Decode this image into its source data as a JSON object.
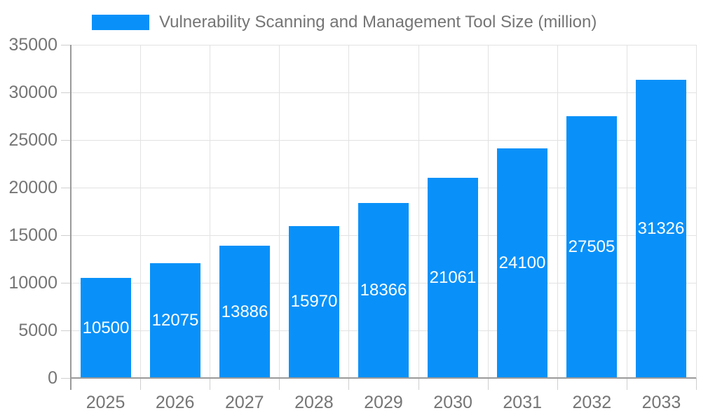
{
  "legend": {
    "label": "Vulnerability Scanning and Management Tool Size (million)",
    "swatch_color": "#0991f9"
  },
  "colors": {
    "bar": "#0991f9",
    "bar_label": "#ffffff",
    "axis_line": "#9a9a9a",
    "grid_line": "#e2e2e2",
    "tick_line": "#cfcfcf",
    "axis_label": "#757575",
    "background": "#ffffff"
  },
  "chart_data": {
    "type": "bar",
    "title": "Vulnerability Scanning and Management Tool Size (million)",
    "categories": [
      "2025",
      "2026",
      "2027",
      "2028",
      "2029",
      "2030",
      "2031",
      "2032",
      "2033"
    ],
    "values": [
      10500,
      12075,
      13886,
      15970,
      18366,
      21061,
      24100,
      27505,
      31326
    ],
    "xlabel": "",
    "ylabel": "",
    "ylim": [
      0,
      35000
    ],
    "ytick_interval": 5000,
    "yticks": [
      0,
      5000,
      10000,
      15000,
      20000,
      25000,
      30000,
      35000
    ],
    "grid": true,
    "legend_position": "top",
    "bar_label_position": "inside-center"
  }
}
